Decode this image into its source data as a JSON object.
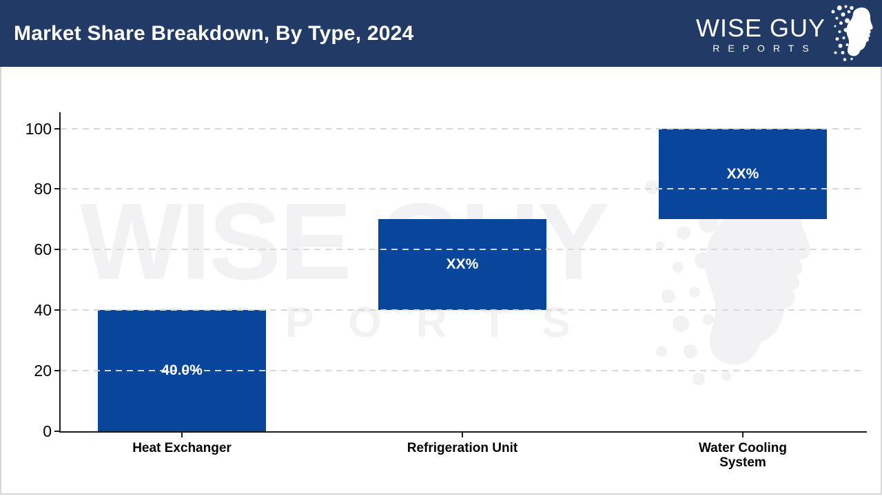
{
  "header": {
    "title": "Market Share Breakdown, By Type, 2024",
    "logo": {
      "brand_line1": "WISE GUY",
      "brand_line2": "REPORTS"
    }
  },
  "watermark": {
    "line1": "WISE GUY",
    "line2": "REPORTS"
  },
  "chart_data": {
    "type": "bar",
    "subtype": "stacked-waterfall",
    "title": "Market Share Breakdown, By Type, 2024",
    "categories": [
      "Heat Exchanger",
      "Refrigeration Unit",
      "Water Cooling System"
    ],
    "category_lines": [
      [
        "Heat Exchanger"
      ],
      [
        "Refrigeration Unit"
      ],
      [
        "Water Cooling",
        "System"
      ]
    ],
    "segments": [
      {
        "category": "Heat Exchanger",
        "start": 0,
        "end": 40,
        "value_label": "40.0%"
      },
      {
        "category": "Refrigeration Unit",
        "start": 40,
        "end": 70,
        "value_label": "XX%"
      },
      {
        "category": "Water Cooling System",
        "start": 70,
        "end": 100,
        "value_label": "XX%"
      }
    ],
    "xlabel": "",
    "ylabel": "",
    "yticks": [
      0,
      20,
      40,
      60,
      80,
      100
    ],
    "ylim": [
      0,
      105
    ],
    "grid": "horizontal-dashed",
    "legend": "none"
  },
  "colors": {
    "header_bg": "#213A66",
    "bar": "#08469C",
    "bar_label": "#ffffff",
    "grid": "#d7d7d7",
    "axis": "#1a1a1a",
    "watermark": "#f2f2f4"
  }
}
